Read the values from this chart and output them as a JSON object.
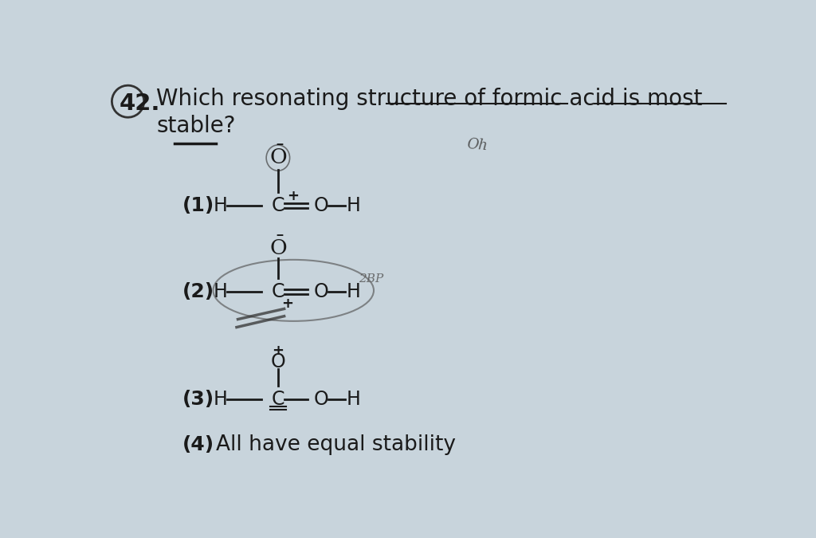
{
  "background_color": "#c8d4dc",
  "text_color": "#1a1a1a",
  "font_size_title": 20,
  "font_size_options": 18,
  "font_size_chem": 17,
  "font_size_super": 12,
  "title_line1": "Which resonating structure of formic acid is most",
  "title_line2": "stable?",
  "oh_annotation": "Oh",
  "option4_text": "All have equal stability"
}
